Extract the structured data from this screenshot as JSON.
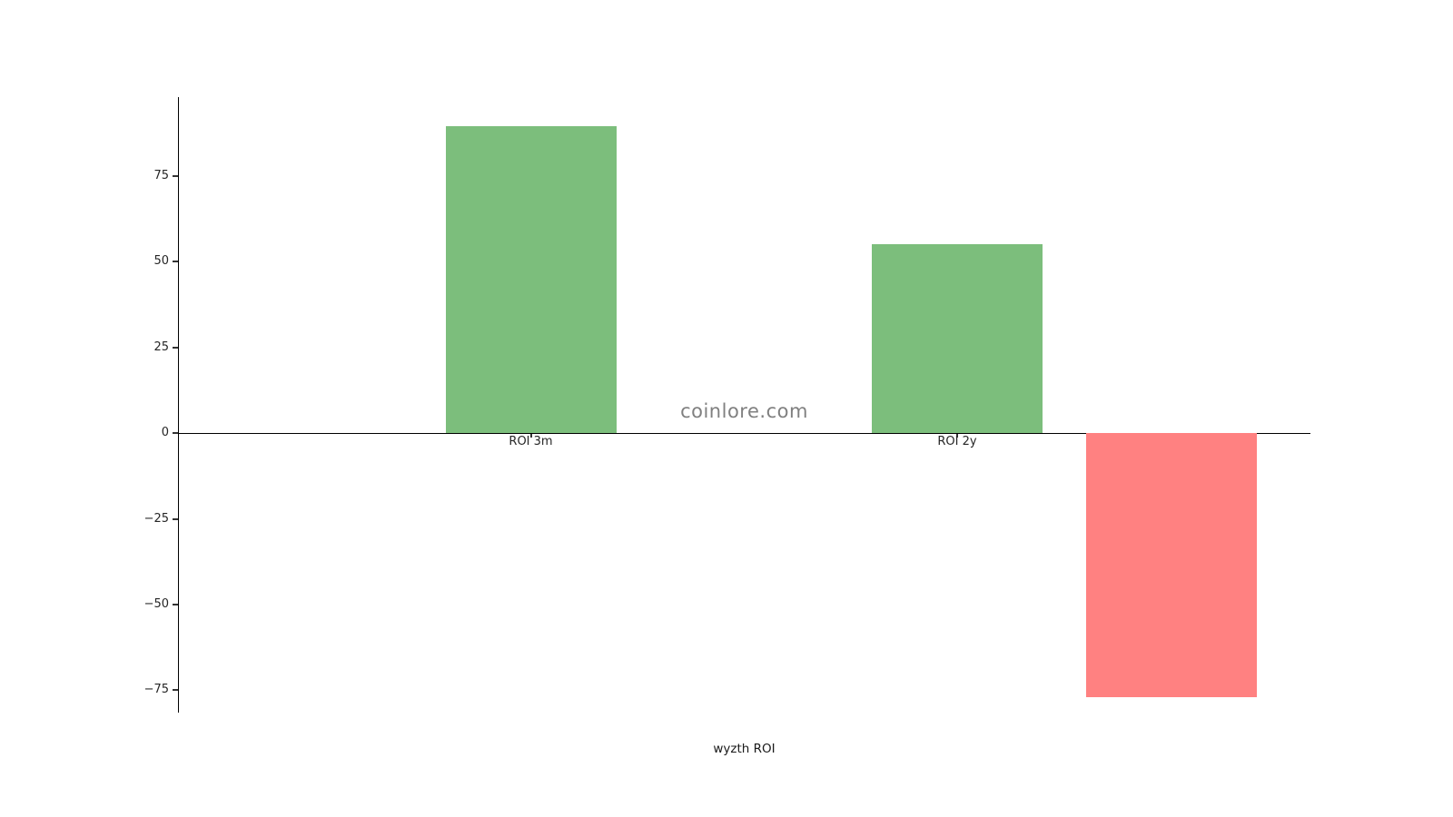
{
  "chart_data": {
    "type": "bar",
    "xlabel": "wyzth ROI",
    "categories": [
      "ROI 3m",
      "ROI 2y",
      ""
    ],
    "values": [
      89.5,
      55,
      -77
    ],
    "bar_colors": [
      "#7cbe7c",
      "#7cbe7c",
      "#ff8181"
    ],
    "positive_color": "#7cbe7c",
    "negative_color": "#ff8181",
    "yticks": [
      75,
      50,
      25,
      0,
      -25,
      -50,
      -75
    ],
    "ytick_labels": [
      "75",
      "50",
      "25",
      "0",
      "−25",
      "−50",
      "−75"
    ],
    "ylim": [
      -81.5,
      98
    ],
    "grid": false,
    "legend": "none",
    "watermark": "coinlore.com",
    "axis_color": "#000000",
    "tick_text_color": "#262626",
    "watermark_color": "#808080"
  }
}
